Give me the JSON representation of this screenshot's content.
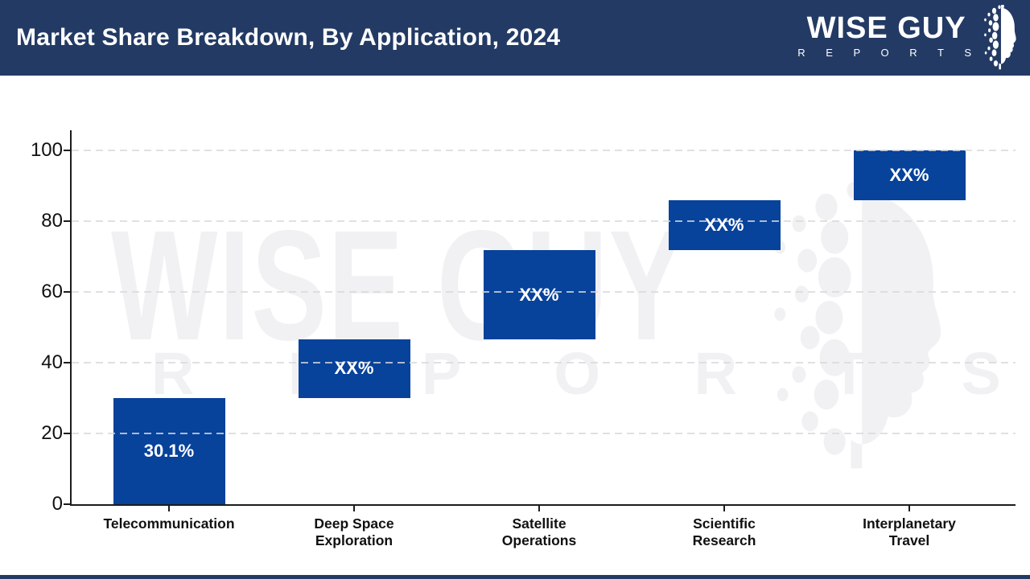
{
  "header": {
    "title": "Market Share Breakdown, By Application, 2024",
    "logo_line1": "WISE GUY",
    "logo_line2": "R E P O R T S"
  },
  "watermark": {
    "line1": "WISE GUY",
    "line2": "R E P O R T S"
  },
  "colors": {
    "header_bg": "#233a64",
    "bar": "#07429b",
    "gridline": "#d9d9d9",
    "axis": "#1c1c1c",
    "bar_label_text": "#ffffff",
    "watermark": "#f1f1f4"
  },
  "chart_data": {
    "type": "bar",
    "subtype": "floating-waterfall",
    "title": "Market Share Breakdown, By Application, 2024",
    "categories": [
      "Telecommunication",
      "Deep Space Exploration",
      "Satellite Operations",
      "Scientific Research",
      "Interplanetary Travel"
    ],
    "segments": [
      {
        "category": "Telecommunication",
        "label_lines": [
          "Telecommunication"
        ],
        "start": 0,
        "end": 30.1,
        "value_label": "30.1%"
      },
      {
        "category": "Deep Space Exploration",
        "label_lines": [
          "Deep Space",
          "Exploration"
        ],
        "start": 30.1,
        "end": 46.5,
        "value_label": "XX%"
      },
      {
        "category": "Satellite Operations",
        "label_lines": [
          "Satellite",
          "Operations"
        ],
        "start": 46.5,
        "end": 71.8,
        "value_label": "XX%"
      },
      {
        "category": "Scientific Research",
        "label_lines": [
          "Scientific",
          "Research"
        ],
        "start": 71.8,
        "end": 85.9,
        "value_label": "XX%"
      },
      {
        "category": "Interplanetary Travel",
        "label_lines": [
          "Interplanetary",
          "Travel"
        ],
        "start": 85.9,
        "end": 100.0,
        "value_label": "XX%"
      }
    ],
    "y_ticks": [
      0,
      20,
      40,
      60,
      80,
      100
    ],
    "ylim": [
      0,
      105.7
    ],
    "xlabel": "",
    "ylabel": "",
    "grid": {
      "horizontal": true,
      "style": "dashed"
    },
    "legend": "none"
  }
}
